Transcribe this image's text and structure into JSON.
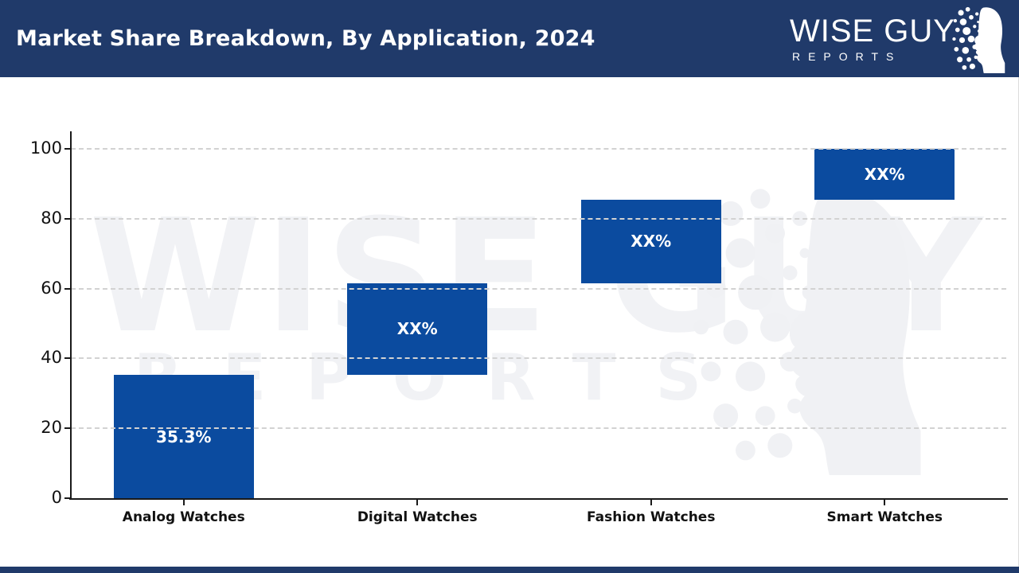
{
  "header": {
    "title": "Market Share Breakdown, By Application, 2024",
    "bg_color": "#203a6a",
    "logo": {
      "line1": "WISE GUY",
      "line2": "REPORTS"
    }
  },
  "watermark": {
    "line1": "WISE GUY",
    "line2": "REPORTS"
  },
  "footer": {
    "bg_color": "#203a6a"
  },
  "chart_data": {
    "type": "bar",
    "subtype": "waterfall",
    "title": "Market Share Breakdown, By Application, 2024",
    "categories": [
      "Analog Watches",
      "Digital Watches",
      "Fashion Watches",
      "Smart Watches"
    ],
    "segments": [
      {
        "category": "Analog Watches",
        "start": 0,
        "end": 35.3,
        "label": "35.3%"
      },
      {
        "category": "Digital Watches",
        "start": 35.3,
        "end": 61.6,
        "label": "XX%"
      },
      {
        "category": "Fashion Watches",
        "start": 61.6,
        "end": 85.4,
        "label": "XX%"
      },
      {
        "category": "Smart Watches",
        "start": 85.4,
        "end": 100,
        "label": "XX%"
      }
    ],
    "y_ticks": [
      0,
      20,
      40,
      60,
      80,
      100
    ],
    "ylim": [
      0,
      105
    ],
    "xlabel": "",
    "ylabel": "",
    "bar_color": "#0b4b9f",
    "label_color": "#ffffff",
    "grid": "horizontal-dashed",
    "legend": "none"
  }
}
